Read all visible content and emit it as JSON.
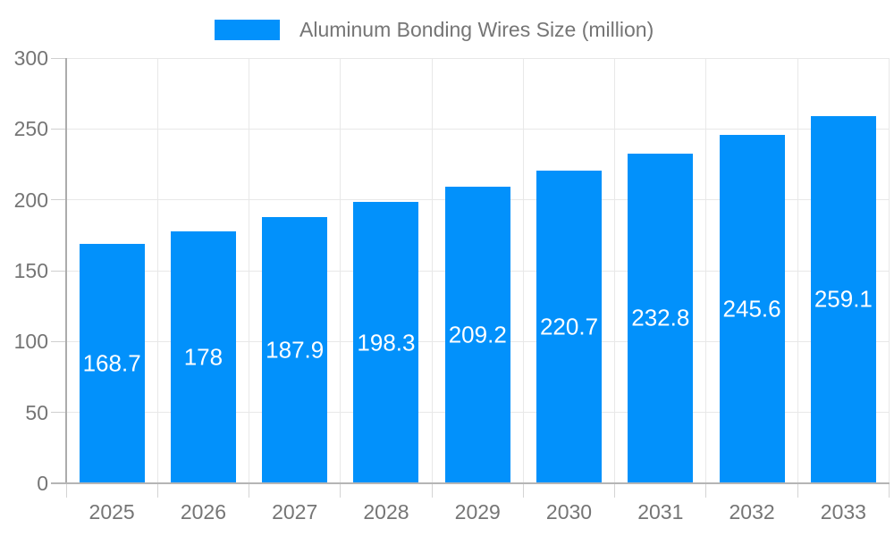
{
  "chart_data": {
    "type": "bar",
    "title": "Aluminum Bonding Wires Size (million)",
    "legend_position": "top",
    "categories": [
      "2025",
      "2026",
      "2027",
      "2028",
      "2029",
      "2030",
      "2031",
      "2032",
      "2033"
    ],
    "series": [
      {
        "name": "Aluminum Bonding Wires Size (million)",
        "values": [
          168.7,
          178,
          187.9,
          198.3,
          209.2,
          220.7,
          232.8,
          245.6,
          259.1
        ]
      }
    ],
    "value_labels": [
      "168.7",
      "178",
      "187.9",
      "198.3",
      "209.2",
      "220.7",
      "232.8",
      "245.6",
      "259.1"
    ],
    "xlabel": "",
    "ylabel": "",
    "ylim": [
      0,
      300
    ],
    "yticks": [
      0,
      50,
      100,
      150,
      200,
      250,
      300
    ],
    "grid": true,
    "colors": {
      "bar": "#0291FB",
      "bar_label": "#FFFFFF",
      "axis_text": "#757575",
      "grid_line": "#E8E8E8",
      "axis_line": "#ACACAC",
      "tick": "#D4D4D4",
      "background": "#FFFFFF"
    }
  }
}
